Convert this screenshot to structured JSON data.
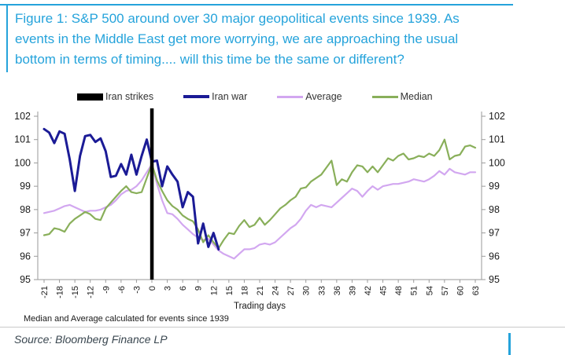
{
  "header": {
    "title": "Figure 1: S&P 500 around over 30 major geopolitical events since 1939. As events in the Middle East get more worrying, we are approaching the usual bottom in terms of timing.... will this time be the same or different?"
  },
  "colors": {
    "accent_cyan": "#25a3db",
    "iran_war_navy": "#1b1b96",
    "average_purple": "#d2a7f0",
    "median_green": "#89af5a",
    "event_bar_black": "#000000",
    "axis_gray": "#9a9a9a"
  },
  "legend": [
    {
      "label": "Iran strikes",
      "color": "#000000",
      "swatch": "bar"
    },
    {
      "label": "Iran war",
      "color": "#1b1b96",
      "swatch": "line"
    },
    {
      "label": "Average",
      "color": "#d2a7f0",
      "swatch": "line"
    },
    {
      "label": "Median",
      "color": "#89af5a",
      "swatch": "line"
    }
  ],
  "chart_data": {
    "type": "line",
    "title": "",
    "xlabel": "Trading days",
    "ylabel": "",
    "x_range": [
      -21,
      63
    ],
    "y_range": [
      95,
      102
    ],
    "x_ticks": [
      -21,
      -18,
      -15,
      -12,
      -9,
      -6,
      -3,
      0,
      3,
      6,
      9,
      12,
      15,
      18,
      21,
      24,
      27,
      30,
      33,
      36,
      39,
      42,
      45,
      48,
      51,
      54,
      57,
      60,
      63
    ],
    "y_ticks": [
      95,
      96,
      97,
      98,
      99,
      100,
      101,
      102
    ],
    "grid": false,
    "legend_position": "top",
    "event_marker": {
      "label": "Iran strikes",
      "x": 0,
      "color": "#000000"
    },
    "series": [
      {
        "name": "Iran war",
        "color": "#1b1b96",
        "width": 3,
        "x_start": -21,
        "values": [
          101.45,
          101.3,
          100.85,
          101.35,
          101.25,
          100.15,
          98.8,
          100.3,
          101.15,
          101.2,
          100.9,
          101.05,
          100.5,
          99.4,
          99.45,
          99.95,
          99.5,
          100.35,
          99.5,
          100.3,
          101.0,
          100.05,
          100.1,
          99.0,
          99.85,
          99.5,
          99.2,
          98.1,
          98.75,
          98.55,
          96.55,
          97.4,
          96.4,
          97.0,
          96.3
        ]
      },
      {
        "name": "Average",
        "color": "#d2a7f0",
        "width": 2.2,
        "x_start": -21,
        "values": [
          97.85,
          97.9,
          97.95,
          98.05,
          98.15,
          98.2,
          98.1,
          98.0,
          97.9,
          97.95,
          97.95,
          98.0,
          98.1,
          98.2,
          98.4,
          98.65,
          98.8,
          98.85,
          99.0,
          99.25,
          99.6,
          99.95,
          99.1,
          98.4,
          97.85,
          97.8,
          97.6,
          97.35,
          97.15,
          96.95,
          96.8,
          96.7,
          96.75,
          96.5,
          96.25,
          96.1,
          96.0,
          95.9,
          96.1,
          96.3,
          96.3,
          96.35,
          96.5,
          96.55,
          96.5,
          96.6,
          96.8,
          97.0,
          97.2,
          97.35,
          97.6,
          97.95,
          98.2,
          98.1,
          98.2,
          98.15,
          98.1,
          98.3,
          98.5,
          98.7,
          98.9,
          98.8,
          98.55,
          98.8,
          99.0,
          98.85,
          99.0,
          99.05,
          99.1,
          99.1,
          99.15,
          99.2,
          99.3,
          99.25,
          99.2,
          99.3,
          99.45,
          99.65,
          99.5,
          99.75,
          99.6,
          99.55,
          99.5,
          99.6,
          99.6
        ]
      },
      {
        "name": "Median",
        "color": "#89af5a",
        "width": 2.2,
        "x_start": -21,
        "values": [
          96.9,
          96.95,
          97.2,
          97.15,
          97.05,
          97.4,
          97.6,
          97.75,
          97.9,
          97.8,
          97.6,
          97.55,
          98.05,
          98.3,
          98.55,
          98.8,
          99.0,
          98.75,
          98.7,
          98.75,
          99.35,
          99.95,
          99.25,
          98.8,
          98.4,
          98.15,
          98.0,
          97.75,
          97.6,
          97.5,
          97.15,
          96.6,
          96.9,
          96.6,
          96.35,
          96.7,
          97.0,
          96.95,
          97.3,
          97.55,
          97.25,
          97.35,
          97.65,
          97.35,
          97.55,
          97.8,
          98.05,
          98.2,
          98.4,
          98.55,
          98.9,
          98.95,
          99.2,
          99.35,
          99.5,
          99.8,
          100.1,
          99.05,
          99.3,
          99.2,
          99.6,
          99.9,
          99.85,
          99.6,
          99.85,
          99.6,
          99.9,
          100.2,
          100.1,
          100.3,
          100.4,
          100.15,
          100.2,
          100.3,
          100.25,
          100.4,
          100.3,
          100.55,
          101.0,
          100.15,
          100.3,
          100.35,
          100.7,
          100.75,
          100.65
        ]
      }
    ]
  },
  "footnote": "Median and Average calculated for events since 1939",
  "source": "Source: Bloomberg Finance LP"
}
